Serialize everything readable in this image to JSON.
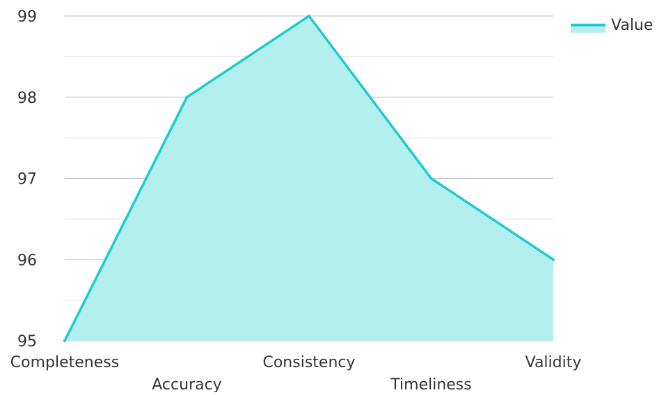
{
  "chart_data": {
    "type": "area",
    "categories": [
      "Completeness",
      "Accuracy",
      "Consistency",
      "Timeliness",
      "Validity"
    ],
    "series": [
      {
        "name": "Value",
        "values": [
          95,
          98,
          99,
          97,
          96
        ]
      }
    ],
    "ylim": [
      95,
      99
    ],
    "yticks": [
      "95",
      "96",
      "97",
      "98",
      "99"
    ],
    "grid": true,
    "legend_position": "top-right",
    "colors": {
      "line": "#1ecbcf",
      "fill": "#b2efee",
      "grid_major": "#bdbdbd",
      "grid_minor": "#e3e3e3"
    }
  }
}
